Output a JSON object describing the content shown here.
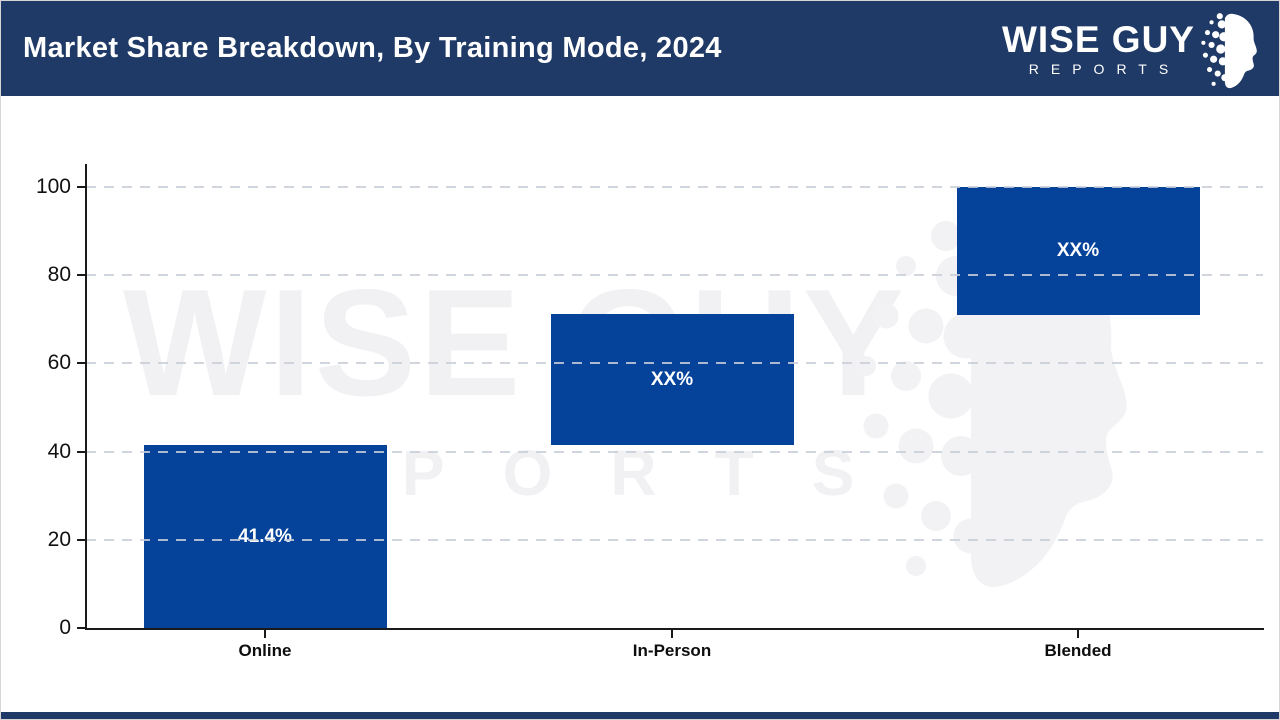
{
  "header": {
    "title": "Market Share Breakdown, By Training Mode, 2024",
    "logo": {
      "line1": "WISE GUY",
      "line2": "REPORTS"
    }
  },
  "watermark": {
    "line1": "WISE GUY",
    "line2": "REPORTS"
  },
  "chart_data": {
    "type": "bar",
    "subtype": "floating-segment (waterfall-style market share breakdown)",
    "title": "Market Share Breakdown, By Training Mode, 2024",
    "categories": [
      "Online",
      "In-Person",
      "Blended"
    ],
    "segments": [
      {
        "category": "Online",
        "start": 0,
        "end": 41.4,
        "label": "41.4%"
      },
      {
        "category": "In-Person",
        "start": 41.4,
        "end": 71.2,
        "label": "XX%"
      },
      {
        "category": "Blended",
        "start": 71,
        "end": 100,
        "label": "XX%"
      }
    ],
    "xlabel": "",
    "ylabel": "",
    "ylim": [
      0,
      100
    ],
    "yticks": [
      0,
      20,
      40,
      60,
      80,
      100
    ],
    "grid": "horizontal-dashed",
    "legend": "none",
    "bar_color": "#05439b",
    "bar_label_color": "#ffffff",
    "axis_color": "#1a1a1a",
    "gridline_color": "#c9ced8",
    "header_bg": "#1f3a66",
    "watermark_color": "#f1f1f4"
  }
}
